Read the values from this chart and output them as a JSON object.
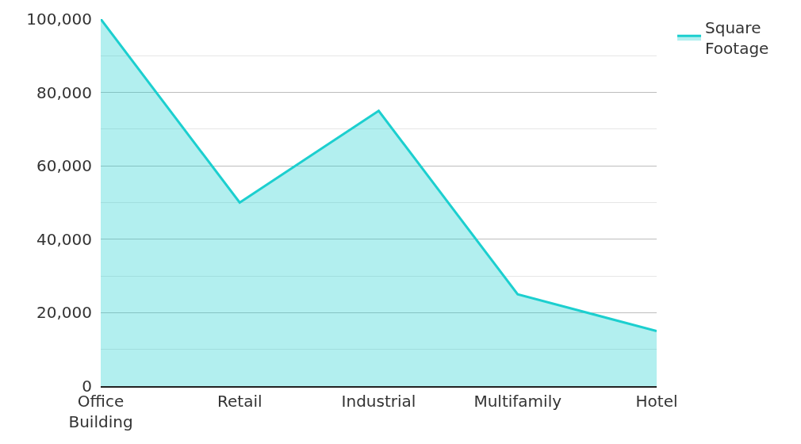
{
  "chart_data": {
    "type": "area",
    "categories": [
      "Office Building",
      "Retail",
      "Industrial",
      "Multifamily",
      "Hotel"
    ],
    "series": [
      {
        "name": "Square Footage",
        "color": "#1ccfcf",
        "values": [
          100000,
          50000,
          75000,
          25000,
          15000
        ]
      }
    ],
    "ylim": [
      0,
      100000
    ],
    "yticks": [
      0,
      {
        "value": 20000,
        "label": "20,000"
      },
      {
        "value": 40000,
        "label": "40,000"
      },
      {
        "value": 60000,
        "label": "60,000"
      },
      {
        "value": 80000,
        "label": "80,000"
      },
      {
        "value": 100000,
        "label": "100,000"
      }
    ],
    "grid": "y",
    "legend": "top right"
  }
}
